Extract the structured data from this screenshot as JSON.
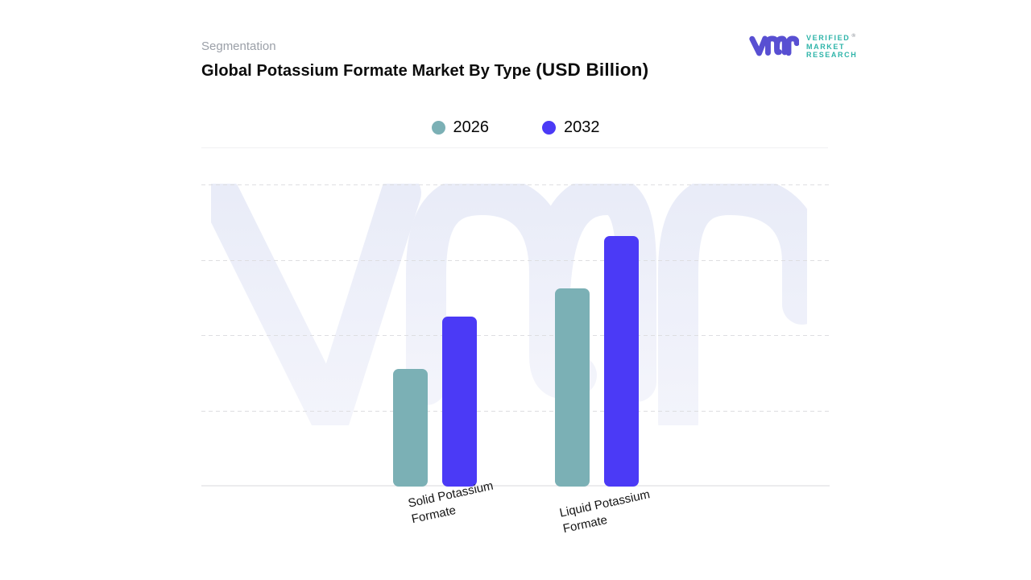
{
  "header": {
    "eyebrow": "Segmentation",
    "title": "Global Potassium Formate Market By Type",
    "title_unit": "(USD Billion)"
  },
  "logo": {
    "glyph": "vmr-monogram",
    "glyph_color": "#584fd2",
    "wordmark_lines": [
      "VERIFIED",
      "MARKET",
      "RESEARCH"
    ],
    "registered_mark": "®",
    "wordmark_color": "#2eb4a9"
  },
  "legend": {
    "items": [
      {
        "label": "2026",
        "color": "#7bb0b5"
      },
      {
        "label": "2032",
        "color": "#4b3af6"
      }
    ]
  },
  "chart_data": {
    "type": "bar",
    "title": "Global Potassium Formate Market By Type (USD Billion)",
    "xlabel": "",
    "ylabel": "",
    "categories": [
      "Solid Potassium\nFormate",
      "Liquid Potassium\nFormate"
    ],
    "series": [
      {
        "name": "2026",
        "color": "#7bb0b5",
        "values": [
          1.56,
          2.63
        ]
      },
      {
        "name": "2032",
        "color": "#4b3af6",
        "values": [
          2.26,
          3.33
        ]
      }
    ],
    "ylim": [
      0,
      4.5
    ],
    "y_tick_labels_visible": false,
    "gridlines": "horizontal-dashed",
    "legend_position": "top-center",
    "values_note": "values estimated in gridline units; chart shows no numeric axis labels"
  },
  "watermark": {
    "name": "vmr-watermark",
    "color_top": "#e9ecf8",
    "color_bottom": "#f3f4fb"
  }
}
